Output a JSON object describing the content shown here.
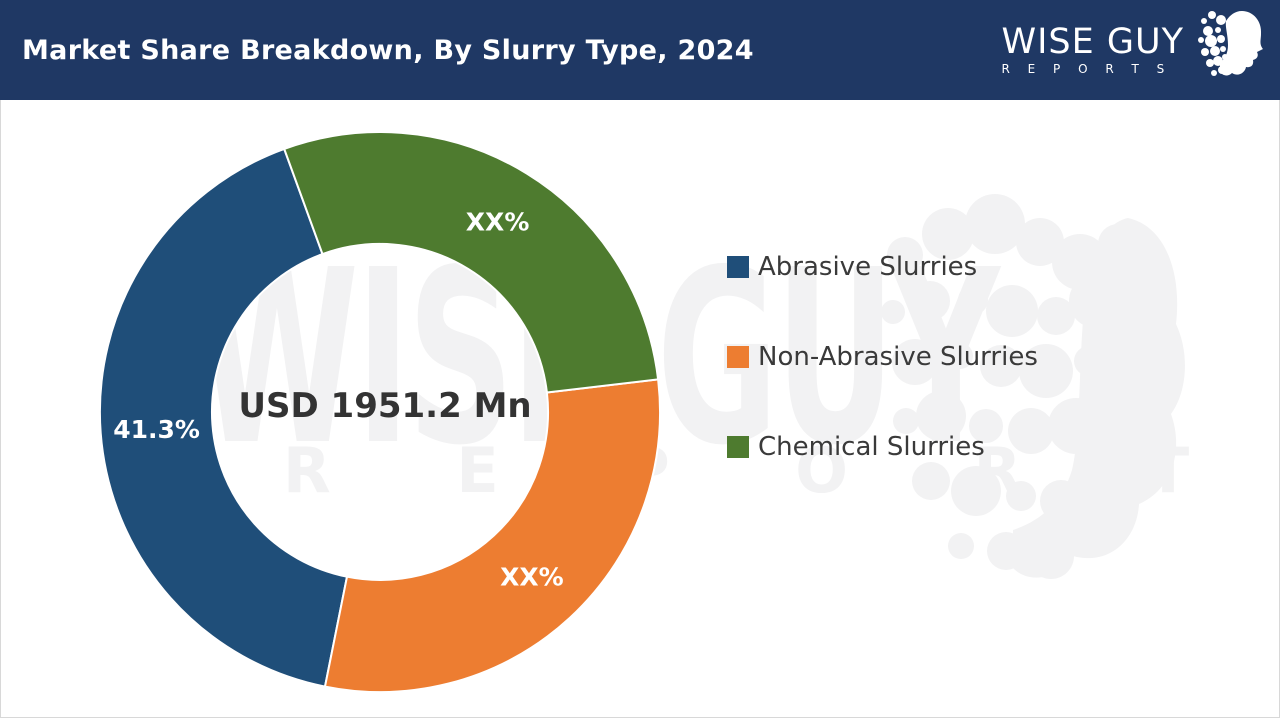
{
  "header": {
    "title": "Market Share Breakdown, By Slurry Type, 2024",
    "logo": {
      "line1": "WISE GUY",
      "line2": "R E P O R T S"
    }
  },
  "chart_data": {
    "type": "pie",
    "donut": true,
    "title": "Market Share Breakdown, By Slurry Type, 2024",
    "center_label": "USD 1951.2 Mn",
    "start_angle_deg": 110,
    "direction": "counterclockwise",
    "legend_position": "right",
    "segments": [
      {
        "key": "abrasive-slurries",
        "label": "Abrasive Slurries",
        "value": 41.3,
        "display_label": "41.3%",
        "color": "#1f4e79"
      },
      {
        "key": "non-abrasive-slurries",
        "label": "Non-Abrasive Slurries",
        "value": 30.0,
        "display_label": "XX%",
        "color": "#ed7d31"
      },
      {
        "key": "chemical-slurries",
        "label": "Chemical Slurries",
        "value": 28.7,
        "display_label": "XX%",
        "color": "#4e7b2f"
      }
    ]
  },
  "watermark": {
    "line1": "WISE GUY",
    "line2": "R E P O R T S"
  },
  "theme": {
    "header_bg": "#1f3864",
    "border": "#d8d8d8",
    "center_text": "#333333",
    "legend_text": "#3a3a3a",
    "slice_label_text": "#ffffff",
    "watermark_color": "#f2f2f3"
  }
}
